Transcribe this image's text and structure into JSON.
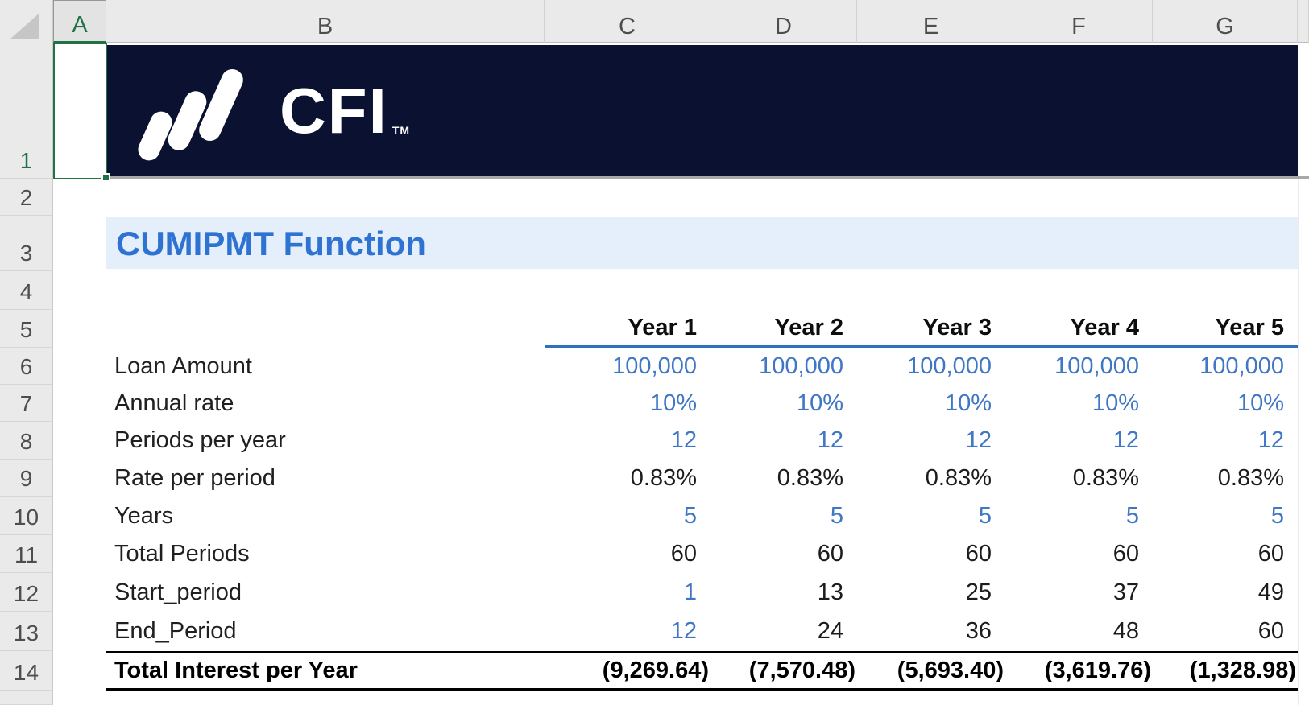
{
  "grid": {
    "select_all_label": "",
    "columns": [
      "A",
      "B",
      "C",
      "D",
      "E",
      "F",
      "G"
    ],
    "row_numbers": [
      "1",
      "2",
      "3",
      "4",
      "5",
      "6",
      "7",
      "8",
      "9",
      "10",
      "11",
      "12",
      "13",
      "14"
    ],
    "selected_cell": "A1",
    "selected_column": "A",
    "selected_row": "1"
  },
  "banner": {
    "brand": "CFI",
    "trademark": "TM"
  },
  "title": "CUMIPMT Function",
  "table": {
    "year_headers": [
      "Year 1",
      "Year 2",
      "Year 3",
      "Year 4",
      "Year 5"
    ],
    "rows": [
      {
        "label": "Loan Amount",
        "values": [
          "100,000",
          "100,000",
          "100,000",
          "100,000",
          "100,000"
        ],
        "value_colors": [
          "blue",
          "blue",
          "blue",
          "blue",
          "blue"
        ],
        "bold": false,
        "total": false
      },
      {
        "label": "Annual rate",
        "values": [
          "10%",
          "10%",
          "10%",
          "10%",
          "10%"
        ],
        "value_colors": [
          "blue",
          "blue",
          "blue",
          "blue",
          "blue"
        ],
        "bold": false,
        "total": false
      },
      {
        "label": "Periods per year",
        "values": [
          "12",
          "12",
          "12",
          "12",
          "12"
        ],
        "value_colors": [
          "blue",
          "blue",
          "blue",
          "blue",
          "blue"
        ],
        "bold": false,
        "total": false
      },
      {
        "label": "Rate per period",
        "values": [
          "0.83%",
          "0.83%",
          "0.83%",
          "0.83%",
          "0.83%"
        ],
        "value_colors": [
          "black",
          "black",
          "black",
          "black",
          "black"
        ],
        "bold": false,
        "total": false
      },
      {
        "label": "Years",
        "values": [
          "5",
          "5",
          "5",
          "5",
          "5"
        ],
        "value_colors": [
          "blue",
          "blue",
          "blue",
          "blue",
          "blue"
        ],
        "bold": false,
        "total": false
      },
      {
        "label": "Total Periods",
        "values": [
          "60",
          "60",
          "60",
          "60",
          "60"
        ],
        "value_colors": [
          "black",
          "black",
          "black",
          "black",
          "black"
        ],
        "bold": false,
        "total": false
      },
      {
        "label": "Start_period",
        "values": [
          "1",
          "13",
          "25",
          "37",
          "49"
        ],
        "value_colors": [
          "blue",
          "black",
          "black",
          "black",
          "black"
        ],
        "bold": false,
        "total": false
      },
      {
        "label": "End_Period",
        "values": [
          "12",
          "24",
          "36",
          "48",
          "60"
        ],
        "value_colors": [
          "blue",
          "black",
          "black",
          "black",
          "black"
        ],
        "bold": false,
        "total": false
      },
      {
        "label": "Total Interest per Year",
        "values": [
          "(9,269.64)",
          "(7,570.48)",
          "(5,693.40)",
          "(3,619.76)",
          "(1,328.98)"
        ],
        "value_colors": [
          "black",
          "black",
          "black",
          "black",
          "black"
        ],
        "bold": true,
        "total": true
      }
    ]
  },
  "colors": {
    "banner_navy": "#0A1131",
    "title_blue": "#2E72D2",
    "title_band_blue": "#E4EFFB",
    "value_blue": "#3F77C5",
    "underline_blue": "#2E73B8",
    "selection_green": "#217346",
    "total_border_black": "#000000"
  }
}
